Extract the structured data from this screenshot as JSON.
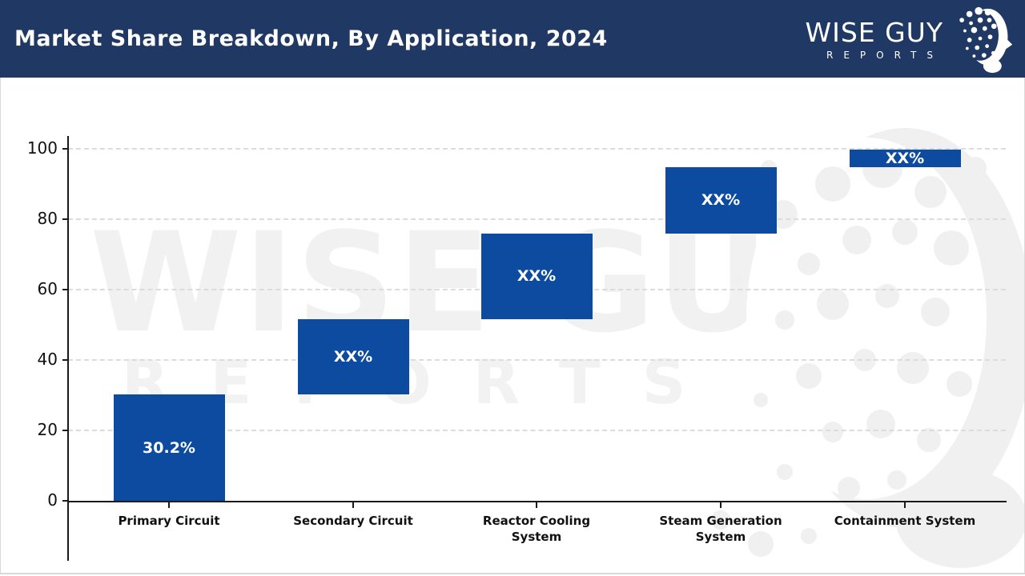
{
  "header": {
    "title": "Market Share Breakdown, By Application, 2024",
    "logo": {
      "line1": "WISE GUY",
      "line2": "REPORTS"
    }
  },
  "watermark": {
    "line1": "WISE GUY",
    "line2": "REPORTS"
  },
  "colors": {
    "header_bg": "#1F3864",
    "bar_blue": "#0D4BA0",
    "grid_gray": "#DCDCDC",
    "axis_black": "#1A1A1A",
    "watermark_gray": "#F1F1F1",
    "label_white": "#FFFFFF"
  },
  "chart_data": {
    "type": "bar",
    "subtype": "waterfall",
    "title": "Market Share Breakdown, By Application, 2024",
    "xlabel": "",
    "ylabel": "",
    "ylim": [
      0,
      103.6
    ],
    "yticks": [
      0,
      20,
      40,
      60,
      80,
      100
    ],
    "grid": "horizontal-dashed",
    "legend": false,
    "categories": [
      "Primary Circuit",
      "Secondary Circuit",
      "Reactor Cooling System",
      "Steam Generation System",
      "Containment System"
    ],
    "segments": [
      {
        "category": "Primary Circuit",
        "label": "30.2%",
        "start": 0,
        "end": 30.2
      },
      {
        "category": "Secondary Circuit",
        "label": "XX%",
        "start": 30.2,
        "end": 51.7
      },
      {
        "category": "Reactor Cooling System",
        "label": "XX%",
        "start": 51.7,
        "end": 75.9
      },
      {
        "category": "Steam Generation System",
        "label": "XX%",
        "start": 75.9,
        "end": 94.8
      },
      {
        "category": "Containment System",
        "label": "XX%",
        "start": 94.8,
        "end": 99.8
      }
    ]
  }
}
